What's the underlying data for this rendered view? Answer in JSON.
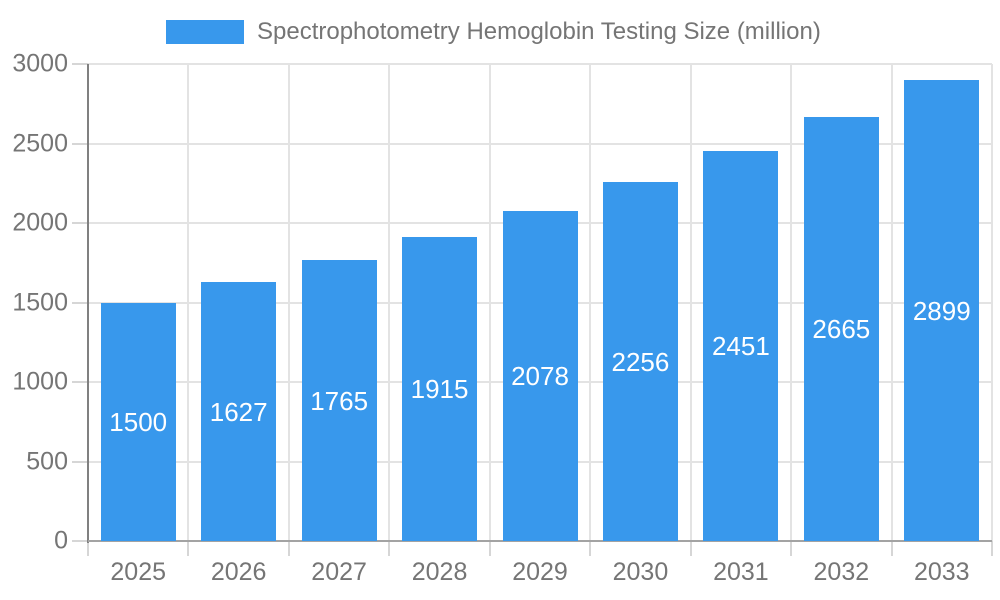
{
  "legend": {
    "label": "Spectrophotometry Hemoglobin Testing Size (million)"
  },
  "colors": {
    "bar": "#3898EC",
    "value_label": "#ffffff",
    "axis_text": "#757575",
    "grid": "#e3e3e3",
    "y_axis_line": "#808080",
    "baseline": "#a3a3a3",
    "tick": "#d6d6d6",
    "background": "#ffffff"
  },
  "chart_data": {
    "type": "bar",
    "title": "",
    "categories": [
      "2025",
      "2026",
      "2027",
      "2028",
      "2029",
      "2030",
      "2031",
      "2032",
      "2033"
    ],
    "series": [
      {
        "name": "Spectrophotometry Hemoglobin Testing Size (million)",
        "values": [
          1500,
          1627,
          1765,
          1915,
          2078,
          2256,
          2451,
          2665,
          2899
        ]
      }
    ],
    "value_labels": [
      "1500",
      "1627",
      "1765",
      "1915",
      "2078",
      "2256",
      "2451",
      "2665",
      "2899"
    ],
    "xlabel": "",
    "ylabel": "",
    "ylim": [
      0,
      3000
    ],
    "yticks": [
      0,
      500,
      1000,
      1500,
      2000,
      2500,
      3000
    ],
    "ytick_labels": [
      "0",
      "500",
      "1000",
      "1500",
      "2000",
      "2500",
      "3000"
    ],
    "grid": true,
    "legend_position": "top",
    "value_label_position": "inside-center"
  }
}
